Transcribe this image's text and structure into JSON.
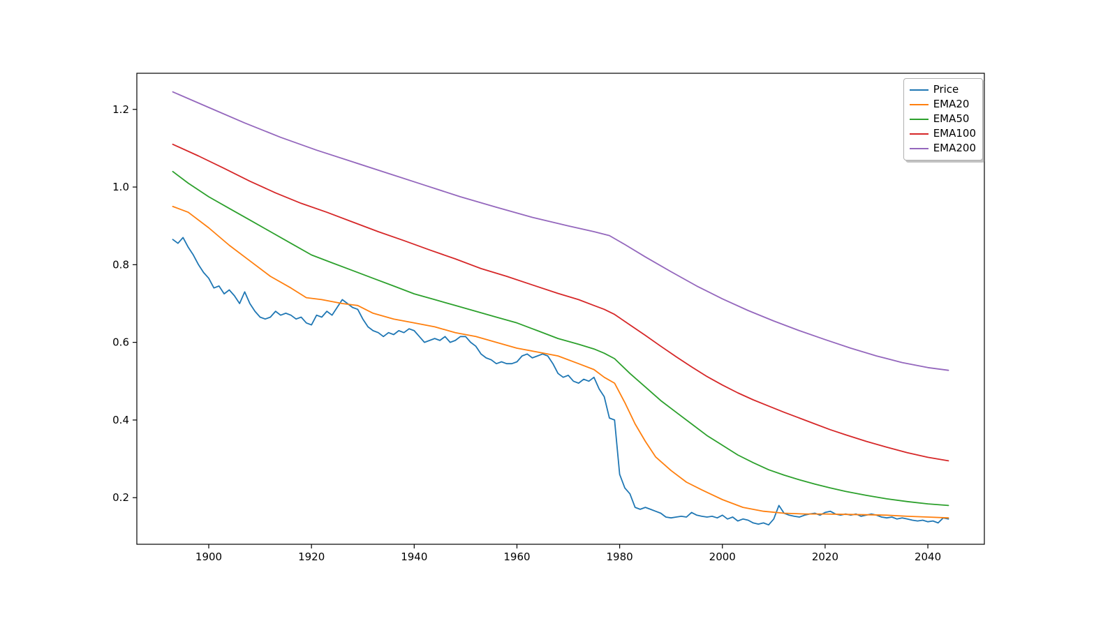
{
  "figure": {
    "background": "#ffffff",
    "axes_edge_color": "#000000"
  },
  "chart_data": {
    "type": "line",
    "title": "",
    "xlabel": "",
    "ylabel": "",
    "grid": false,
    "legend_position": "upper right",
    "xlim": [
      1886,
      2051
    ],
    "ylim": [
      0.08,
      1.293
    ],
    "x_ticks": [
      1900,
      1920,
      1940,
      1960,
      1980,
      2000,
      2020,
      2040
    ],
    "y_ticks": [
      0.2,
      0.4,
      0.6,
      0.8,
      1.0,
      1.2
    ],
    "series": [
      {
        "name": "Price",
        "color": "#1f77b4",
        "x_start": 1893,
        "x_step": 1,
        "y": [
          0.865,
          0.855,
          0.87,
          0.845,
          0.825,
          0.8,
          0.78,
          0.765,
          0.74,
          0.745,
          0.725,
          0.735,
          0.72,
          0.7,
          0.73,
          0.7,
          0.68,
          0.665,
          0.66,
          0.665,
          0.68,
          0.67,
          0.675,
          0.67,
          0.66,
          0.665,
          0.65,
          0.645,
          0.67,
          0.665,
          0.68,
          0.67,
          0.69,
          0.71,
          0.7,
          0.69,
          0.685,
          0.66,
          0.64,
          0.63,
          0.625,
          0.615,
          0.625,
          0.62,
          0.63,
          0.625,
          0.635,
          0.63,
          0.615,
          0.6,
          0.605,
          0.61,
          0.605,
          0.615,
          0.6,
          0.605,
          0.615,
          0.615,
          0.6,
          0.59,
          0.57,
          0.56,
          0.555,
          0.545,
          0.55,
          0.545,
          0.545,
          0.55,
          0.565,
          0.57,
          0.56,
          0.565,
          0.57,
          0.565,
          0.545,
          0.52,
          0.51,
          0.515,
          0.5,
          0.495,
          0.505,
          0.5,
          0.51,
          0.48,
          0.46,
          0.405,
          0.4,
          0.26,
          0.225,
          0.21,
          0.175,
          0.17,
          0.175,
          0.17,
          0.165,
          0.16,
          0.15,
          0.148,
          0.15,
          0.152,
          0.15,
          0.162,
          0.155,
          0.152,
          0.15,
          0.152,
          0.148,
          0.155,
          0.145,
          0.15,
          0.14,
          0.145,
          0.142,
          0.135,
          0.132,
          0.135,
          0.13,
          0.145,
          0.18,
          0.16,
          0.155,
          0.152,
          0.15,
          0.155,
          0.158,
          0.16,
          0.155,
          0.162,
          0.165,
          0.158,
          0.155,
          0.158,
          0.155,
          0.158,
          0.152,
          0.155,
          0.158,
          0.155,
          0.15,
          0.148,
          0.15,
          0.145,
          0.148,
          0.145,
          0.142,
          0.14,
          0.142,
          0.138,
          0.14,
          0.135,
          0.148,
          0.145
        ]
      },
      {
        "name": "EMA20",
        "color": "#ff7f0e",
        "x": [
          1893,
          1896,
          1900,
          1904,
          1908,
          1912,
          1916,
          1919,
          1922,
          1926,
          1929,
          1932,
          1936,
          1940,
          1944,
          1948,
          1952,
          1956,
          1960,
          1964,
          1968,
          1972,
          1975,
          1977,
          1979,
          1981,
          1983,
          1985,
          1987,
          1990,
          1993,
          1996,
          2000,
          2004,
          2008,
          2012,
          2016,
          2020,
          2024,
          2028,
          2032,
          2036,
          2040,
          2044
        ],
        "y": [
          0.95,
          0.935,
          0.895,
          0.85,
          0.81,
          0.77,
          0.74,
          0.715,
          0.71,
          0.7,
          0.695,
          0.675,
          0.66,
          0.65,
          0.64,
          0.625,
          0.615,
          0.6,
          0.585,
          0.575,
          0.565,
          0.545,
          0.53,
          0.51,
          0.495,
          0.445,
          0.39,
          0.345,
          0.305,
          0.27,
          0.24,
          0.22,
          0.195,
          0.175,
          0.165,
          0.16,
          0.158,
          0.158,
          0.157,
          0.156,
          0.155,
          0.152,
          0.15,
          0.148
        ]
      },
      {
        "name": "EMA50",
        "color": "#2ca02c",
        "x": [
          1893,
          1896,
          1900,
          1904,
          1908,
          1912,
          1916,
          1920,
          1924,
          1928,
          1932,
          1936,
          1940,
          1944,
          1948,
          1952,
          1956,
          1960,
          1964,
          1968,
          1972,
          1975,
          1977,
          1979,
          1982,
          1985,
          1988,
          1991,
          1994,
          1997,
          2000,
          2003,
          2006,
          2009,
          2012,
          2015,
          2018,
          2021,
          2024,
          2028,
          2032,
          2036,
          2040,
          2044
        ],
        "y": [
          1.04,
          1.01,
          0.975,
          0.945,
          0.915,
          0.885,
          0.855,
          0.825,
          0.805,
          0.785,
          0.765,
          0.745,
          0.725,
          0.71,
          0.695,
          0.68,
          0.665,
          0.65,
          0.63,
          0.61,
          0.595,
          0.583,
          0.572,
          0.558,
          0.52,
          0.485,
          0.45,
          0.42,
          0.39,
          0.36,
          0.335,
          0.31,
          0.29,
          0.272,
          0.258,
          0.246,
          0.235,
          0.225,
          0.216,
          0.206,
          0.197,
          0.19,
          0.184,
          0.18
        ]
      },
      {
        "name": "EMA100",
        "color": "#d62728",
        "x": [
          1893,
          1898,
          1903,
          1908,
          1913,
          1918,
          1923,
          1928,
          1933,
          1938,
          1943,
          1948,
          1953,
          1958,
          1963,
          1968,
          1972,
          1975,
          1977,
          1979,
          1982,
          1985,
          1988,
          1991,
          1994,
          1997,
          2000,
          2003,
          2006,
          2009,
          2012,
          2015,
          2018,
          2021,
          2024,
          2028,
          2032,
          2036,
          2040,
          2044
        ],
        "y": [
          1.11,
          1.08,
          1.048,
          1.015,
          0.985,
          0.958,
          0.935,
          0.91,
          0.885,
          0.862,
          0.838,
          0.815,
          0.79,
          0.77,
          0.748,
          0.726,
          0.71,
          0.695,
          0.685,
          0.672,
          0.645,
          0.618,
          0.59,
          0.563,
          0.537,
          0.512,
          0.49,
          0.47,
          0.452,
          0.436,
          0.42,
          0.405,
          0.39,
          0.375,
          0.362,
          0.345,
          0.33,
          0.316,
          0.304,
          0.295
        ]
      },
      {
        "name": "EMA200",
        "color": "#9467bd",
        "x": [
          1893,
          1900,
          1907,
          1914,
          1921,
          1928,
          1935,
          1942,
          1949,
          1956,
          1963,
          1970,
          1975,
          1978,
          1981,
          1985,
          1990,
          1995,
          2000,
          2005,
          2010,
          2015,
          2020,
          2025,
          2030,
          2035,
          2040,
          2044
        ],
        "y": [
          1.245,
          1.205,
          1.165,
          1.128,
          1.095,
          1.065,
          1.035,
          1.005,
          0.975,
          0.948,
          0.922,
          0.9,
          0.885,
          0.875,
          0.852,
          0.82,
          0.782,
          0.745,
          0.712,
          0.682,
          0.655,
          0.63,
          0.607,
          0.585,
          0.565,
          0.548,
          0.535,
          0.528
        ]
      }
    ]
  }
}
